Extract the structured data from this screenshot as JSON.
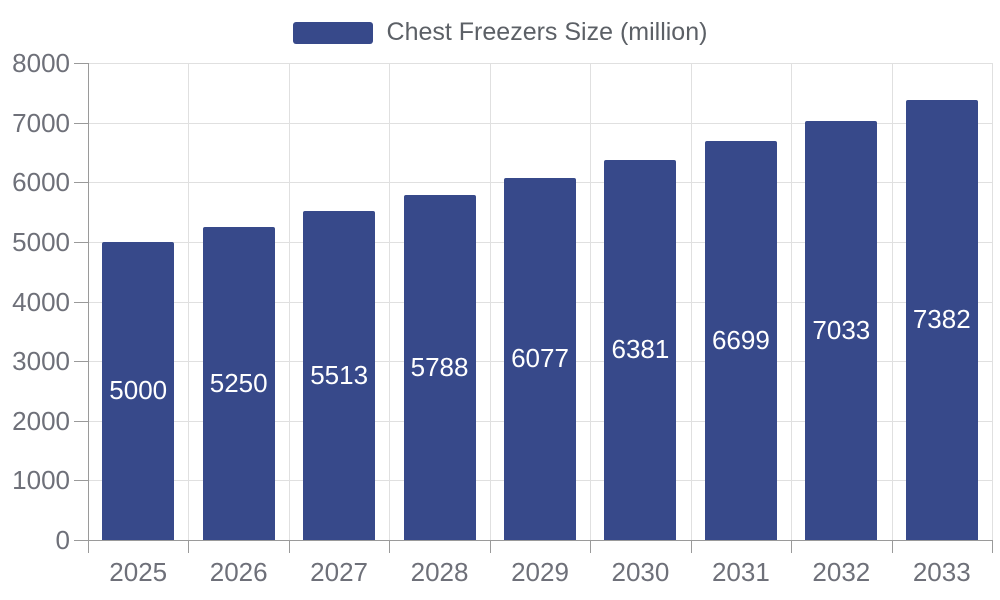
{
  "legend": {
    "label": "Chest Freezers Size (million)"
  },
  "chart_data": {
    "type": "bar",
    "title": "",
    "series_name": "Chest Freezers Size (million)",
    "categories": [
      "2025",
      "2026",
      "2027",
      "2028",
      "2029",
      "2030",
      "2031",
      "2032",
      "2033"
    ],
    "values": [
      5000,
      5250,
      5513,
      5788,
      6077,
      6381,
      6699,
      7033,
      7382
    ],
    "xlabel": "",
    "ylabel": "",
    "ylim": [
      0,
      8000
    ],
    "yticks": [
      0,
      1000,
      2000,
      3000,
      4000,
      5000,
      6000,
      7000,
      8000
    ],
    "grid": true,
    "legend_position": "top-center",
    "bar_color": "#37498a",
    "value_label_color": "#ffffff",
    "axis_text_color": "#6e7079",
    "grid_color": "#e0e0e0",
    "axis_line_color": "#9a9a9a"
  }
}
